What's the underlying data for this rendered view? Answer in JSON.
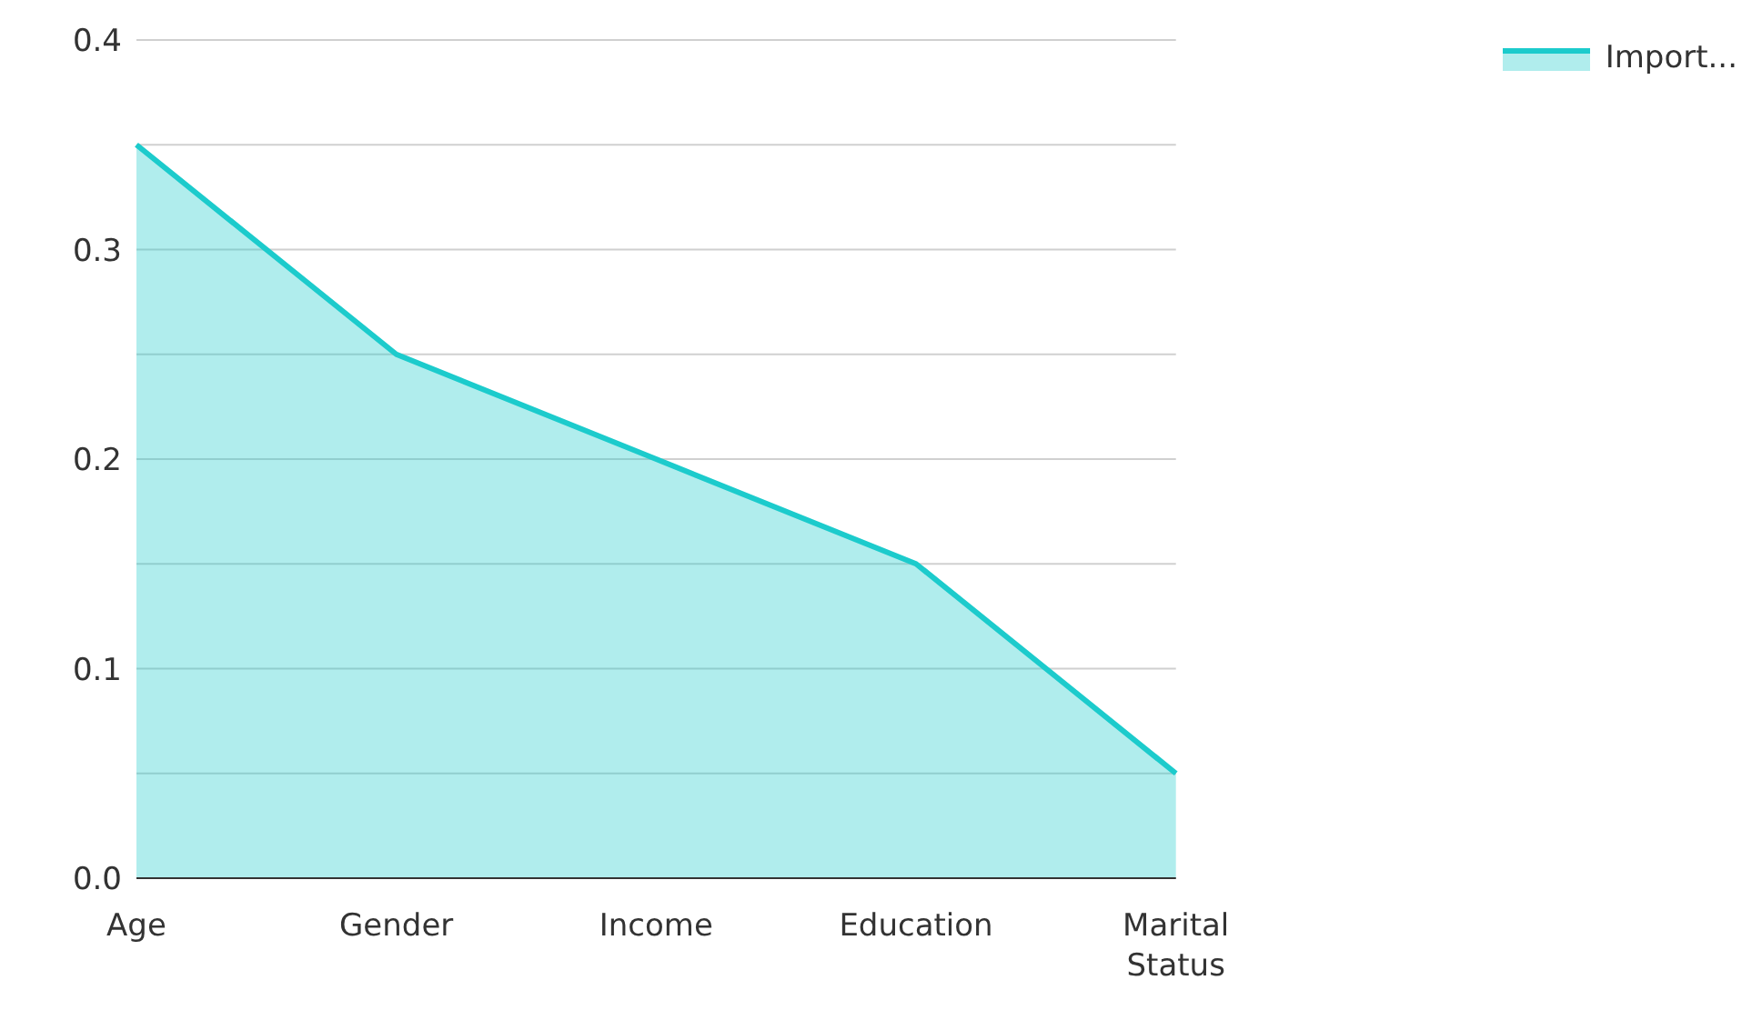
{
  "chart_data": {
    "type": "area",
    "categories": [
      "Age",
      "Gender",
      "Income",
      "Education",
      "Marital Status"
    ],
    "series": [
      {
        "name": "Import...",
        "color": "#1ccbcc",
        "values": [
          0.35,
          0.25,
          0.2,
          0.15,
          0.05
        ]
      }
    ],
    "ylim": [
      0,
      0.4
    ],
    "yticks": [
      {
        "value": 0,
        "label": "0.0"
      },
      {
        "value": 0.05,
        "label": null
      },
      0.1,
      {
        "value": 0.15,
        "label": null
      },
      0.2,
      {
        "value": 0.25,
        "label": null
      },
      0.3,
      {
        "value": 0.35,
        "label": null
      },
      0.4
    ],
    "grid": "y",
    "legend": "top right"
  }
}
